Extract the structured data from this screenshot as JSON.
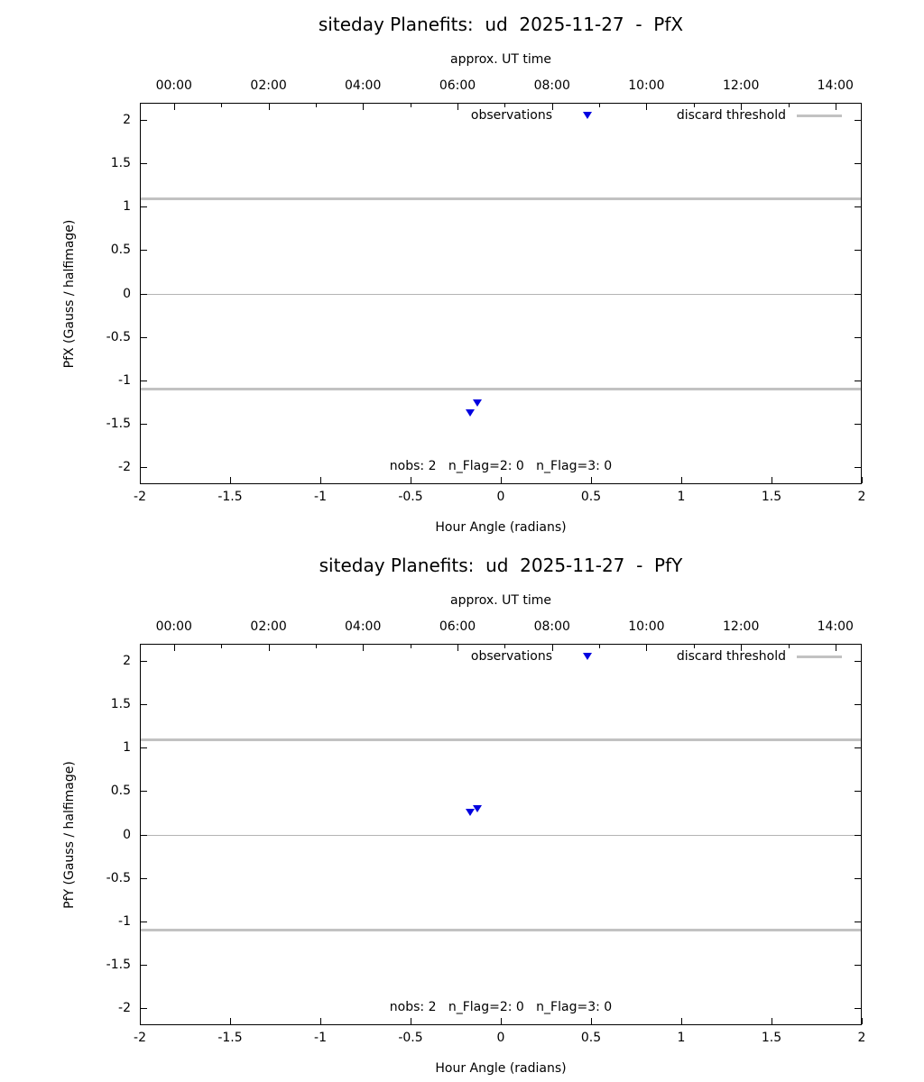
{
  "colors": {
    "background": "#ffffff",
    "marker_blue": "#0000e0",
    "threshold_gray": "#c2c2c2",
    "zero_line_gray": "#b4b4b4",
    "axis_black": "#000000"
  },
  "chart_data": [
    {
      "chart_id": "pfx-chart",
      "type": "scatter",
      "title": "siteday Planefits:  ud  2025-11-27  -  PfX",
      "top_axis": {
        "label": "approx. UT time",
        "major_ticks": [
          {
            "label": "00:00",
            "ha": -1.811
          },
          {
            "label": "02:00",
            "ha": -1.287
          },
          {
            "label": "04:00",
            "ha": -0.764
          },
          {
            "label": "06:00",
            "ha": -0.24
          },
          {
            "label": "08:00",
            "ha": 0.284
          },
          {
            "label": "10:00",
            "ha": 0.807
          },
          {
            "label": "12:00",
            "ha": 1.331
          },
          {
            "label": "14:00",
            "ha": 1.854
          }
        ],
        "minor_ticks_ha": [
          -1.549,
          -1.025,
          -0.502,
          0.022,
          0.546,
          1.069,
          1.593
        ]
      },
      "xlabel": "Hour Angle (radians)",
      "ylabel": "PfX (Gauss / halfimage)",
      "xlim": [
        -2,
        2
      ],
      "ylim": [
        -2.2,
        2.2
      ],
      "x_ticks": [
        -2,
        -1.5,
        -1,
        -0.5,
        0,
        0.5,
        1,
        1.5,
        2
      ],
      "x_tick_labels": [
        "-2",
        "-1.5",
        "-1",
        "-0.5",
        "0",
        "0.5",
        "1",
        "1.5",
        "2"
      ],
      "y_ticks": [
        2,
        1.5,
        1,
        0.5,
        0,
        -0.5,
        -1,
        -1.5,
        -2
      ],
      "y_tick_labels": [
        "2",
        "1.5",
        "1",
        "0.5",
        "0",
        "-0.5",
        "-1",
        "-1.5",
        "-2"
      ],
      "zero_line_y": 0,
      "discard_threshold_y": [
        1.1,
        -1.1
      ],
      "legend": {
        "observations_label": "observations",
        "observations_marker": "blue-down-triangle",
        "threshold_label": "discard threshold",
        "threshold_marker": "gray-line"
      },
      "observations": [
        {
          "hour_angle": -0.17,
          "value": -1.38
        },
        {
          "hour_angle": -0.13,
          "value": -1.26
        }
      ],
      "annotation": "nobs: 2   n_Flag=2: 0   n_Flag=3: 0"
    },
    {
      "chart_id": "pfy-chart",
      "type": "scatter",
      "title": "siteday Planefits:  ud  2025-11-27  -  PfY",
      "top_axis": {
        "label": "approx. UT time",
        "major_ticks": [
          {
            "label": "00:00",
            "ha": -1.811
          },
          {
            "label": "02:00",
            "ha": -1.287
          },
          {
            "label": "04:00",
            "ha": -0.764
          },
          {
            "label": "06:00",
            "ha": -0.24
          },
          {
            "label": "08:00",
            "ha": 0.284
          },
          {
            "label": "10:00",
            "ha": 0.807
          },
          {
            "label": "12:00",
            "ha": 1.331
          },
          {
            "label": "14:00",
            "ha": 1.854
          }
        ],
        "minor_ticks_ha": [
          -1.549,
          -1.025,
          -0.502,
          0.022,
          0.546,
          1.069,
          1.593
        ]
      },
      "xlabel": "Hour Angle (radians)",
      "ylabel": "PfY (Gauss / halfimage)",
      "xlim": [
        -2,
        2
      ],
      "ylim": [
        -2.2,
        2.2
      ],
      "x_ticks": [
        -2,
        -1.5,
        -1,
        -0.5,
        0,
        0.5,
        1,
        1.5,
        2
      ],
      "x_tick_labels": [
        "-2",
        "-1.5",
        "-1",
        "-0.5",
        "0",
        "0.5",
        "1",
        "1.5",
        "2"
      ],
      "y_ticks": [
        2,
        1.5,
        1,
        0.5,
        0,
        -0.5,
        -1,
        -1.5,
        -2
      ],
      "y_tick_labels": [
        "2",
        "1.5",
        "1",
        "0.5",
        "0",
        "-0.5",
        "-1",
        "-1.5",
        "-2"
      ],
      "zero_line_y": 0,
      "discard_threshold_y": [
        1.1,
        -1.1
      ],
      "legend": {
        "observations_label": "observations",
        "observations_marker": "blue-down-triangle",
        "threshold_label": "discard threshold",
        "threshold_marker": "gray-line"
      },
      "observations": [
        {
          "hour_angle": -0.17,
          "value": 0.26
        },
        {
          "hour_angle": -0.13,
          "value": 0.3
        }
      ],
      "annotation": "nobs: 2   n_Flag=2: 0   n_Flag=3: 0"
    }
  ]
}
